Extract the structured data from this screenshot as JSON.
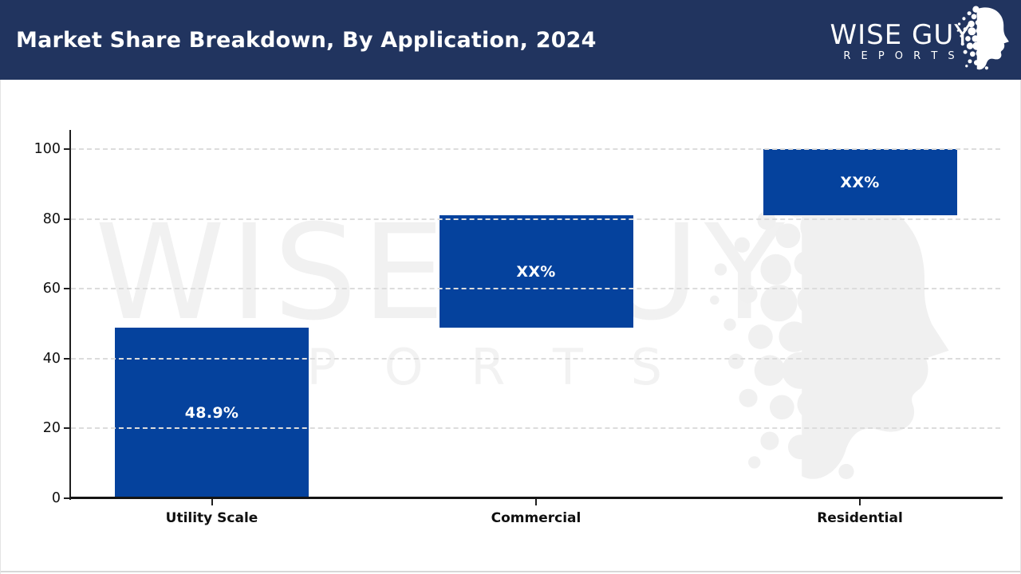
{
  "header": {
    "title": "Market Share Breakdown, By Application, 2024",
    "logo": {
      "line1": "WISE GUY",
      "line2": "R E P O R T S"
    }
  },
  "watermark": {
    "line1": "WISE GUY",
    "line2": "R E P O R T S"
  },
  "colors": {
    "header_bg": "#21345f",
    "bar": "#05429d",
    "bar_label": "#ffffff",
    "gridline": "#dcdcdc",
    "axis": "#1f1f1f",
    "tick_label": "#101010",
    "watermark": "#f1f1f1",
    "title_text": "#ffffff"
  },
  "chart_data": {
    "type": "bar",
    "variant": "waterfall",
    "title": "Market Share Breakdown, By Application, 2024",
    "categories": [
      "Utility Scale",
      "Commercial",
      "Residential"
    ],
    "series": [
      {
        "name": "Utility Scale",
        "start": 0,
        "end": 48.9,
        "value": 48.9,
        "label": "48.9%"
      },
      {
        "name": "Commercial",
        "start": 48.9,
        "end": 81.0,
        "value": 32.1,
        "label": "XX%"
      },
      {
        "name": "Residential",
        "start": 81.0,
        "end": 100.0,
        "value": 19.0,
        "label": "XX%"
      }
    ],
    "xlabel": "",
    "ylabel": "",
    "yticks": [
      0,
      20,
      40,
      60,
      80,
      100
    ],
    "ylim": [
      0,
      105.5
    ],
    "grid": "horizontal-dashed",
    "legend": "none"
  }
}
